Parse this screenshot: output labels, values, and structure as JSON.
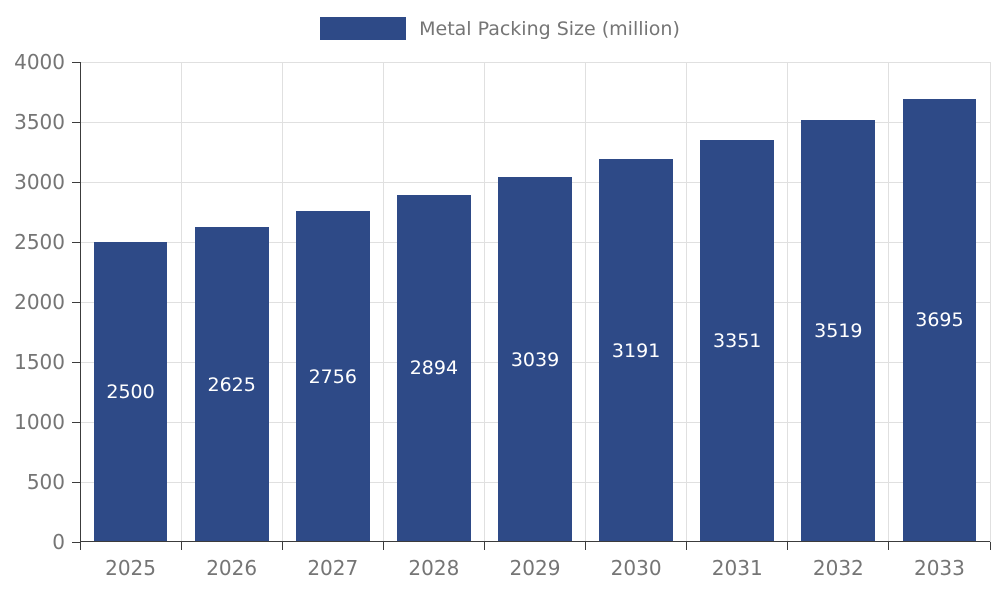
{
  "chart_data": {
    "type": "bar",
    "title": "Metal Packing Size (million)",
    "categories": [
      "2025",
      "2026",
      "2027",
      "2028",
      "2029",
      "2030",
      "2031",
      "2032",
      "2033"
    ],
    "series": [
      {
        "name": "Metal Packing Size (million)",
        "values": [
          2500,
          2625,
          2756,
          2894,
          3039,
          3191,
          3351,
          3519,
          3695
        ]
      }
    ],
    "xlabel": "",
    "ylabel": "",
    "ylim": [
      0,
      4000
    ],
    "yticks": [
      0,
      500,
      1000,
      1500,
      2000,
      2500,
      3000,
      3500,
      4000
    ],
    "grid": true,
    "legend_position": "top-center",
    "value_label_position": "inside-center",
    "colors": {
      "bar": "#2e4a87",
      "value_label": "#ffffff",
      "axis_text": "#757575",
      "axis_line": "#3c3c3c",
      "gridline": "#e0e0e0",
      "background": "#ffffff"
    }
  }
}
